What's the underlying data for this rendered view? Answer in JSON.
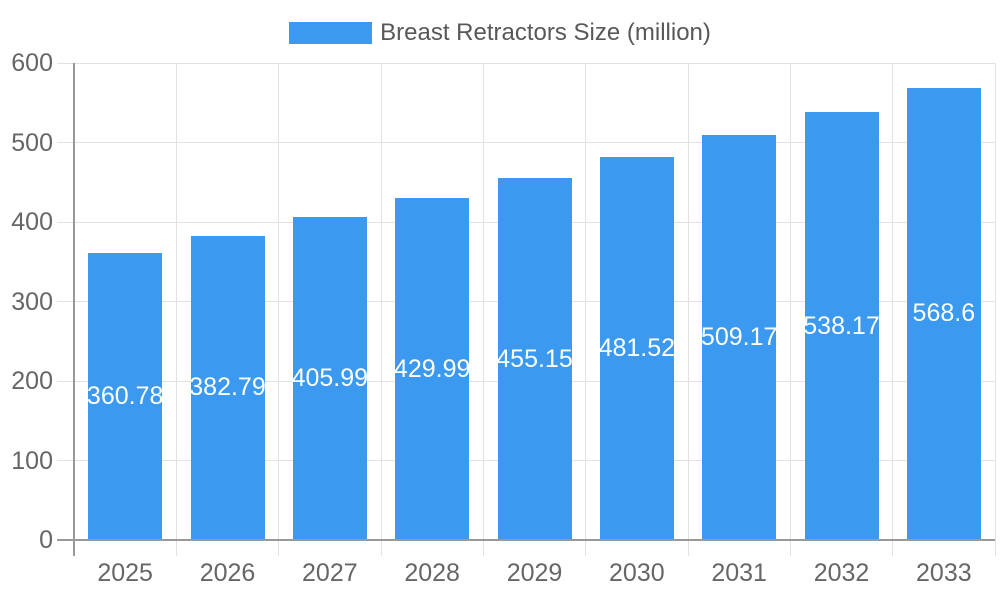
{
  "legend": {
    "label": "Breast Retractors Size (million)"
  },
  "colors": {
    "bar": "#3B99F0",
    "axis_line": "#999999",
    "gridline": "#E2E2E2",
    "axis_text": "#666666",
    "legend_text": "#58585A",
    "value_text": "#FFFFFF",
    "background": "#FFFFFF"
  },
  "chart_data": {
    "type": "bar",
    "title": "Breast Retractors Size (million)",
    "categories": [
      "2025",
      "2026",
      "2027",
      "2028",
      "2029",
      "2030",
      "2031",
      "2032",
      "2033"
    ],
    "values": [
      360.78,
      382.79,
      405.99,
      429.99,
      455.15,
      481.52,
      509.17,
      538.17,
      568.6
    ],
    "value_labels": [
      "360.78",
      "382.79",
      "405.99",
      "429.99",
      "455.15",
      "481.52",
      "509.17",
      "538.17",
      "568.6"
    ],
    "xlabel": "",
    "ylabel": "",
    "ylim": [
      0,
      600
    ],
    "yticks": [
      0,
      100,
      200,
      300,
      400,
      500,
      600
    ],
    "grid": true,
    "legend_position": "top-center",
    "value_label_position": "inside-center"
  }
}
